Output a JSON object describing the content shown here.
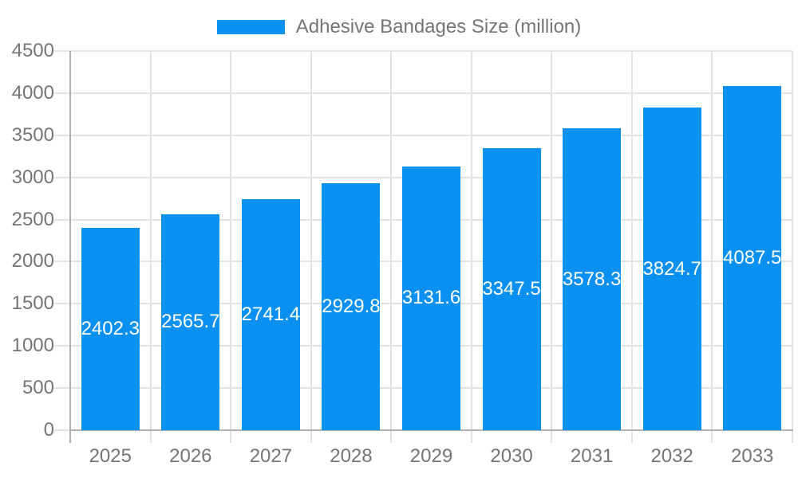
{
  "chart_data": {
    "type": "bar",
    "title": "",
    "categories": [
      "2025",
      "2026",
      "2027",
      "2028",
      "2029",
      "2030",
      "2031",
      "2032",
      "2033"
    ],
    "series": [
      {
        "name": "Adhesive Bandages Size (million)",
        "values": [
          2402.3,
          2565.7,
          2741.4,
          2929.8,
          3131.6,
          3347.5,
          3578.3,
          3824.7,
          4087.5
        ]
      }
    ],
    "value_labels": [
      "2402.3",
      "2565.7",
      "2741.4",
      "2929.8",
      "3131.6",
      "3347.5",
      "3578.3",
      "3824.7",
      "4087.5"
    ],
    "xlabel": "",
    "ylabel": "",
    "ylim": [
      0,
      4500
    ],
    "yticks": [
      0,
      500,
      1000,
      1500,
      2000,
      2500,
      3000,
      3500,
      4000,
      4500
    ],
    "grid": "on",
    "legend_position": "top-center",
    "colors": {
      "bar": "#0a90f1",
      "grid": "#e3e3e3",
      "axis": "#b0b0b0",
      "tick_text": "#757575",
      "value_label_text": "#ffffff",
      "background": "#ffffff"
    }
  }
}
